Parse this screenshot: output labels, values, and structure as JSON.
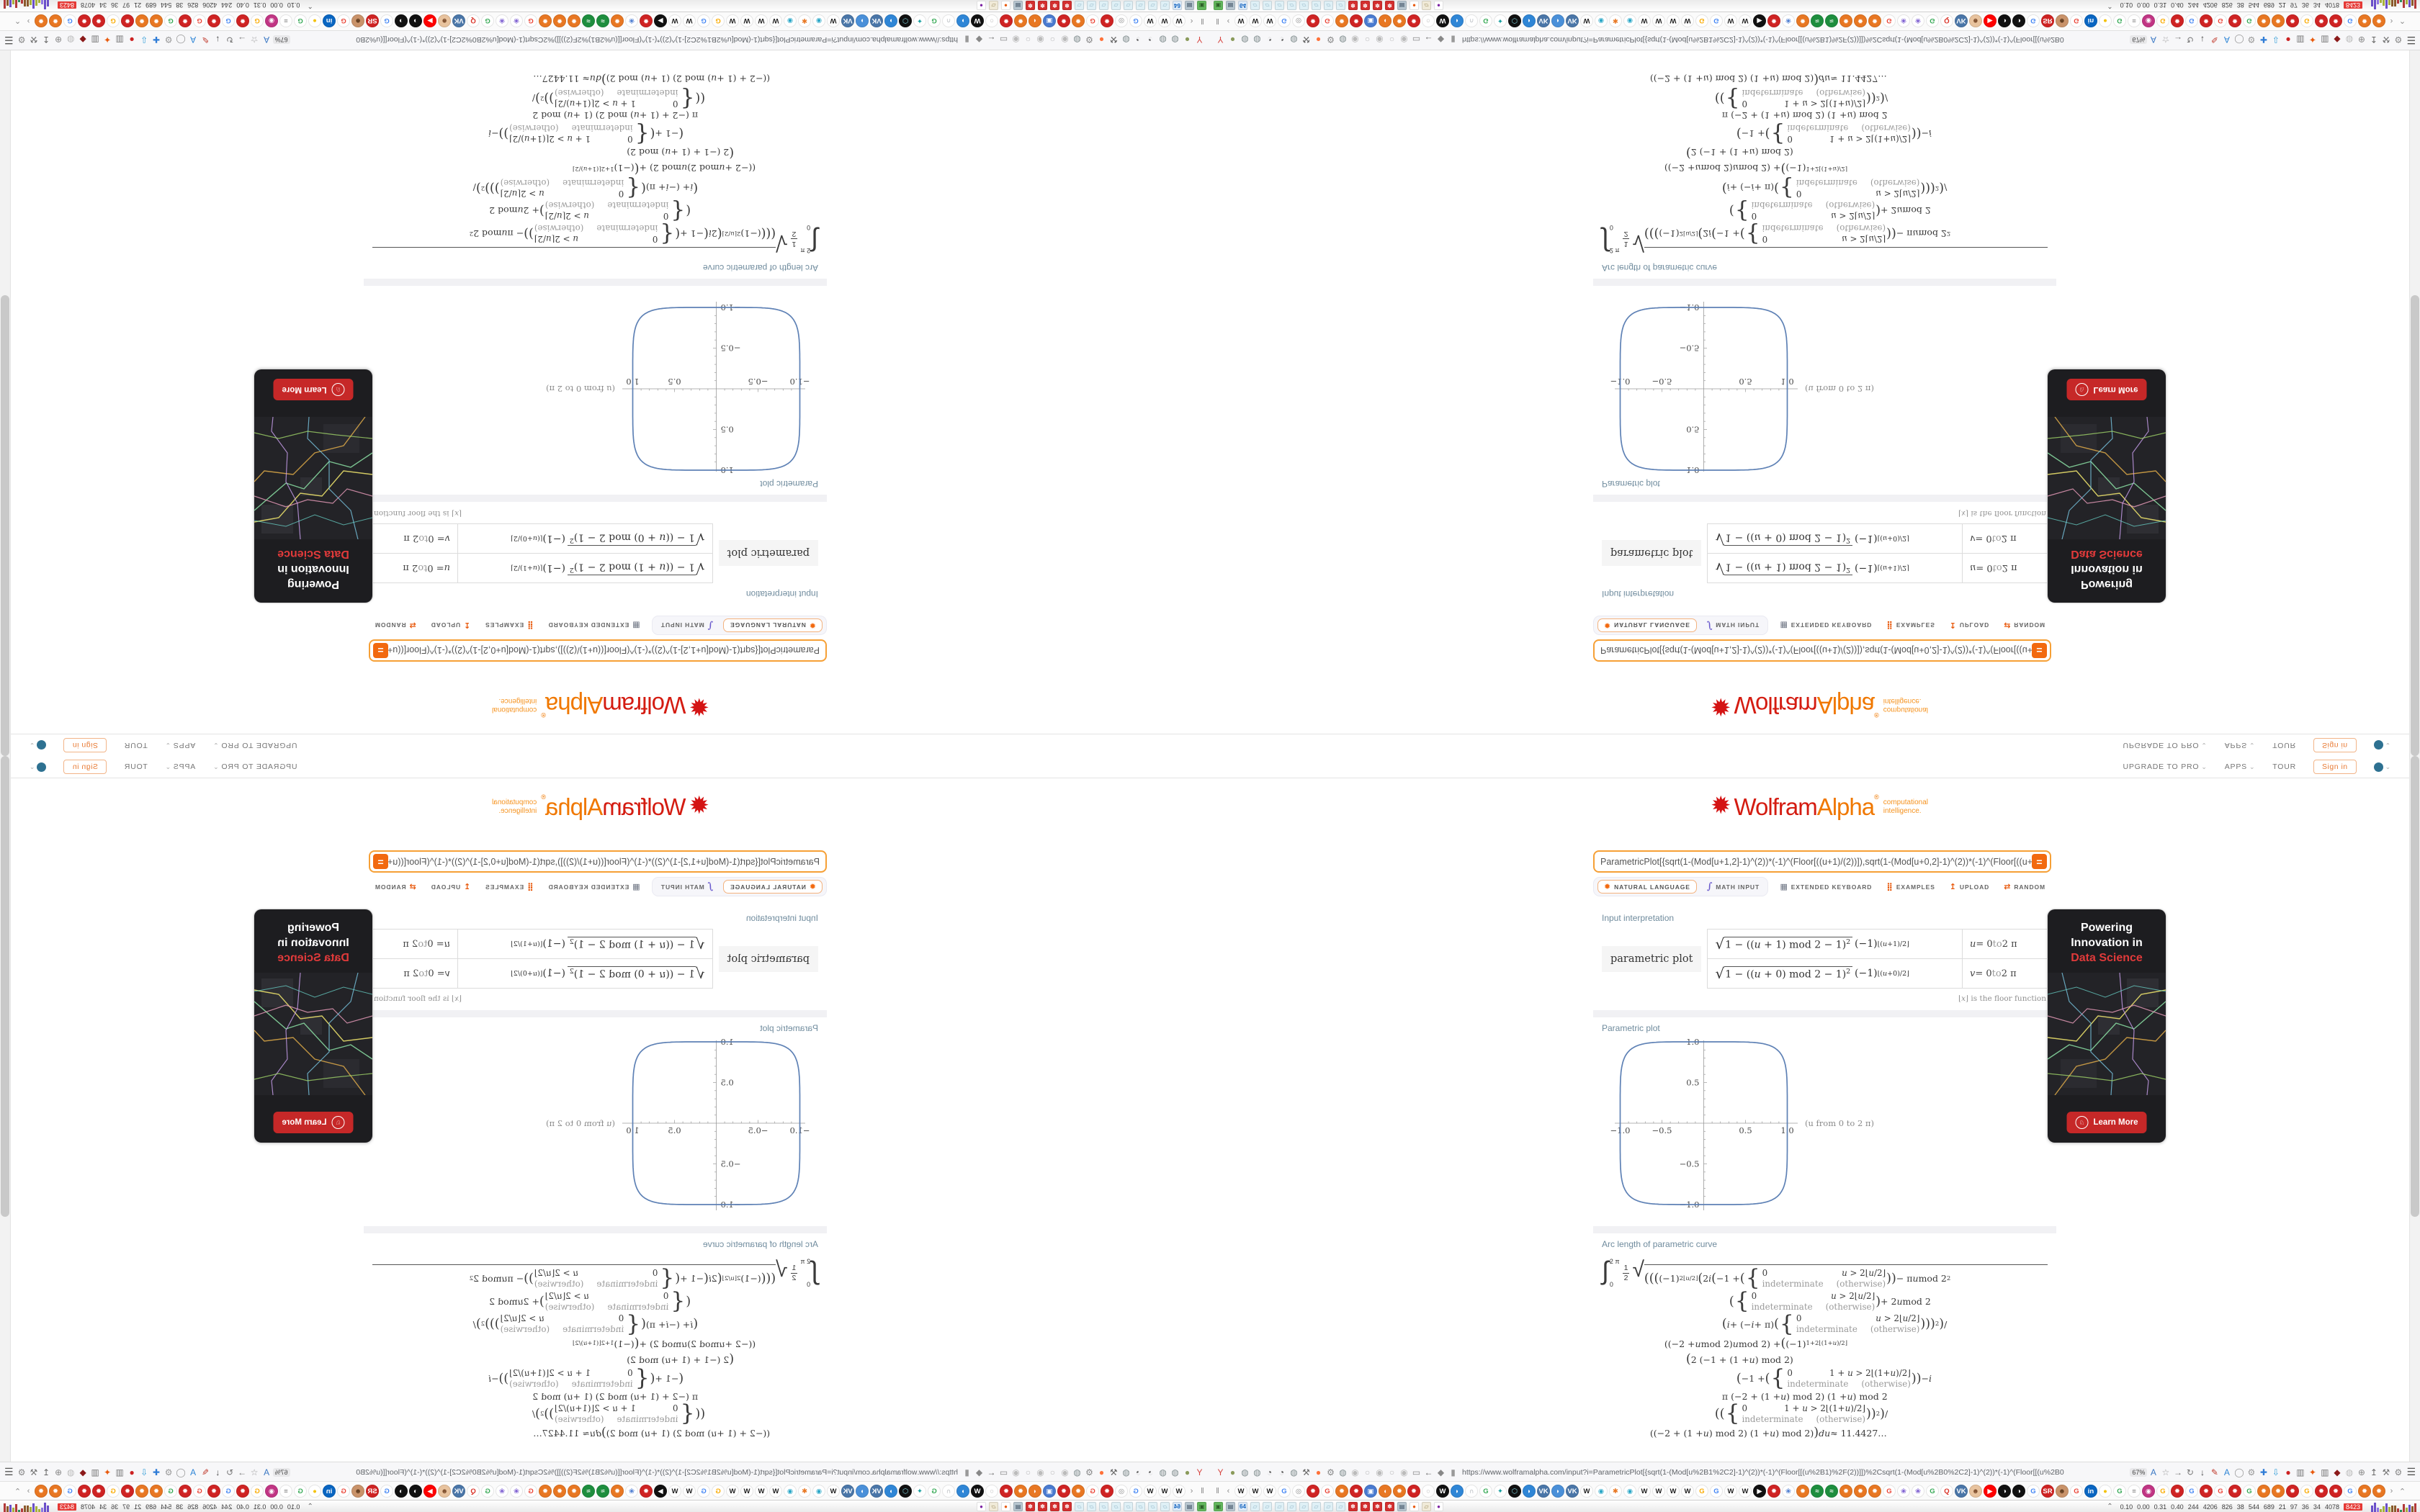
{
  "header": {
    "link_upgrade": "UPGRADE TO PRO",
    "link_apps": "APPS",
    "link_tour": "TOUR",
    "signin_label": "Sign in",
    "chevron": "⌄"
  },
  "logo": {
    "wolfram": "Wolfram",
    "alpha": "Alpha",
    "reg": "®",
    "tagline1": "computational",
    "tagline2": "intelligence.",
    "spikey_glyph": "✹"
  },
  "input": {
    "value": "ParametricPlot[{sqrt(1-(Mod[u+1,2]-1)^(2))*(-1)^(Floor[((u+1)/(2))]),sqrt(1-(Mod[u+0,2]-1)^(2))*(-1)^(Floor[((u+0)/(2))])}]",
    "equals_label": "="
  },
  "buttons": {
    "natural_language": "NATURAL LANGUAGE",
    "math_input": "MATH INPUT",
    "extended_keyboard": "EXTENDED KEYBOARD",
    "examples": "EXAMPLES",
    "upload": "UPLOAD",
    "random": "RANDOM",
    "nl_icon": "✹",
    "mi_icon": "∫",
    "kb_icon": "▦",
    "ex_icon": "⣿",
    "up_icon": "↥",
    "rnd_icon": "⇄"
  },
  "interp": {
    "title": "Input interpretation",
    "label": "parametric plot",
    "row1_formula": "<span class='sq2'>√</span><span class='ov'>1 − ((<i>u</i> + 1) mod 2 − 1)<sup>2</sup></span>&thinsp;(−1)<sup>⌊(<i>u</i>+1)/2⌋</sup>",
    "row1_range": "<i>u</i> = 0 <span class='to'>to</span> 2 π",
    "row2_formula": "<span class='sq2'>√</span><span class='ov'>1 − ((<i>u</i> + 0) mod 2 − 1)<sup>2</sup></span>&thinsp;(−1)<sup>⌊(<i>u</i>+0)/2⌋</sup>",
    "row2_range": "<i>v</i> = 0 <span class='to'>to</span> 2 π",
    "floor_note": "⌊<i>x</i>⌋ is the floor function"
  },
  "plot": {
    "title": "Parametric plot",
    "caption": "(u from 0 to 2 π)",
    "chart_data": {
      "type": "line",
      "parametric": true,
      "x_expr": "sqrt(1-((u+1) mod 2 -1)^2)*(-1)^floor((u+1)/2)",
      "y_expr": "sqrt(1-((u+0) mod 2 -1)^2)*(-1)^floor((u+0)/2)",
      "u_range": [
        0,
        6.2832
      ],
      "shape": "rounded square (superellipse-like closed curve through (±1,0),(0,±1))",
      "xlim": [
        -1.05,
        1.05
      ],
      "ylim": [
        -1.05,
        1.05
      ],
      "grid": false
    },
    "xticks": [
      {
        "v": -1,
        "l": "−1.0"
      },
      {
        "v": -0.5,
        "l": "−0.5"
      },
      {
        "v": 0.5,
        "l": "0.5"
      },
      {
        "v": 1,
        "l": "1.0"
      }
    ],
    "yticks": [
      {
        "v": 1,
        "l": "1.0"
      },
      {
        "v": 0.5,
        "l": "0.5"
      },
      {
        "v": -0.5,
        "l": "−0.5"
      },
      {
        "v": -1,
        "l": "−1.0"
      }
    ],
    "curve_color": "#5e81b5"
  },
  "arc": {
    "title": "Arc length of parametric curve",
    "int_hi": "2 π",
    "int_lo": "0",
    "frac_n": "1",
    "frac_d": "2",
    "radical": "√",
    "integral_glyph": "∫",
    "result": "11.4427…",
    "lines": [
      {
        "i": 0,
        "h": "<span class='bp'>(((</span>(−1)<sup>2⌊<i>u</i>/2⌋</sup><span class='bp'>(</span>2 <i>i</i><span class='bp'>(</span>−1 + <span class='bp'>(</span><span class='cas'><span class='bb'>{</span><span class='cbody'><span class='cr'><span>0</span><span><i>u</i> &gt; 2⌊<i>u</i>/2⌋</span></span><span class='cr ind'><span>indeterminate</span><span>(otherwise)</span></span></span></span><span class='bp'>))</span> − π <i>u</i> mod 2<sup>2</sup>"
      },
      {
        "i": 118,
        "h": "<span class='bp'>(</span><span class='cas'><span class='bb'>{</span><span class='cbody'><span class='cr'><span>0</span><span><i>u</i> &gt; 2⌊<i>u</i>/2⌋</span></span><span class='cr ind'><span>indeterminate</span><span>(otherwise)</span></span></span></span><span class='bp'>)</span> + 2 <i>u</i> mod 2"
      },
      {
        "i": 108,
        "h": "<span class='bp'>(</span><i>i</i> + (−<i>i</i> + π)<span class='bp'>(</span><span class='cas'><span class='bb'>{</span><span class='cbody'><span class='cr'><span>0</span><span><i>u</i> &gt; 2⌊<i>u</i>/2⌋</span></span><span class='cr ind'><span>indeterminate</span><span>(otherwise)</span></span></span></span><span class='bp'>)))</span><sup>2</sup><span class='bp'>)</span>/"
      },
      {
        "i": 28,
        "h": "((−2 + <i>u</i> mod 2) <i>u</i> mod 2) + <span class='bp'>(</span>(−1)<sup>1+2⌊(1+<i>u</i>)/2⌋</sup>"
      },
      {
        "i": 58,
        "h": "<span class='bp'>(</span>2 (−1 + (1 + <i>u</i>) mod 2)"
      },
      {
        "i": 128,
        "h": "<span class='bp'>(</span>−1 + <span class='bp'>(</span><span class='cas'><span class='bb'>{</span><span class='cbody'><span class='cr'><span>0</span><span>1 + <i>u</i> &gt; 2⌊(1+<i>u</i>)/2⌋</span></span><span class='cr ind'><span>indeterminate</span><span>(otherwise)</span></span></span></span><span class='bp'>))</span> − <i>i</i>"
      },
      {
        "i": 108,
        "h": "π (−2 + (1 + <i>u</i>) mod 2) (1 + <i>u</i>) mod 2"
      },
      {
        "i": 98,
        "h": "<span class='bp'>((</span><span class='cas'><span class='bb'>{</span><span class='cbody'><span class='cr'><span>0</span><span>1 + <i>u</i> &gt; 2⌊(1+<i>u</i>)/2⌋</span></span><span class='cr ind'><span>indeterminate</span><span>(otherwise)</span></span></span></span><span class='bp'>))</span><sup>2</sup><span class='bp'>)</span>/"
      },
      {
        "i": 8,
        "h": "((−2 + (1 + <i>u</i>) mod 2) (1 + <i>u</i>) mod 2)<span class='bp'>)</span> <i>du</i> ≈ 11.4427…"
      }
    ]
  },
  "ad": {
    "line1": "Powering",
    "line2": "Innovation in",
    "line3": "Data Science",
    "button": "Learn More",
    "accent": "#e03a3a",
    "button_bg": "#c62828",
    "knight_icon": "♘"
  },
  "browser": {
    "url": "https://www.wolframalpha.com/input?i=ParametricPlot[{sqrt(1-(Mod[u%2B1%2C2]-1)^(2))*(-1)^(Floor[[(u%2B1)%2F(2))]])%2Csqrt(1-(Mod[u%2B0%2C2]-1)^(2))*(-1)^(Floor[[(u%2B0",
    "zoom_badge": "67%",
    "menu_icon": "☰",
    "tab_ctl_left1": "‖",
    "tab_ctl_left2": "‹",
    "tab_ctl_right1": "›",
    "tab_ctl_right2": "⌃",
    "nav_left_icons": [
      {
        "t": "Y",
        "c": "#d64541"
      },
      {
        "t": "●",
        "c": "#8a9a5b"
      },
      {
        "t": "◍",
        "c": "#7f8c8d"
      },
      {
        "t": "◍",
        "c": "#7f8c8d"
      },
      {
        "t": "◔",
        "c": "#555555"
      },
      {
        "t": "◔",
        "c": "#555555"
      },
      {
        "t": "◍",
        "c": "#7f8c8d"
      },
      {
        "t": "⚒",
        "c": "#666666"
      },
      {
        "t": "●",
        "c": "#ff7139"
      },
      {
        "t": "⚙",
        "c": "#888888"
      },
      {
        "t": "◍",
        "c": "#7f8c8d"
      },
      {
        "t": "◉",
        "c": "#bbbbbb"
      },
      {
        "t": "○",
        "c": "#bbbbbb"
      },
      {
        "t": "◉",
        "c": "#bbbbbb"
      },
      {
        "t": "○",
        "c": "#bbbbbb"
      },
      {
        "t": "◉",
        "c": "#bbbbbb"
      },
      {
        "t": "▭",
        "c": "#8a8a8a"
      },
      {
        "t": "←",
        "c": "#666666"
      },
      {
        "t": "◆",
        "c": "#888888"
      },
      {
        "t": "▮",
        "c": "#999999"
      }
    ],
    "nav_right_icons": [
      {
        "t": "A",
        "c": "#3b78c4"
      },
      {
        "t": "☆",
        "c": "#999999"
      },
      {
        "t": "→",
        "c": "#777777"
      },
      {
        "t": "↻",
        "c": "#777777"
      },
      {
        "t": "↓",
        "c": "#444444"
      },
      {
        "t": "✎",
        "c": "#c0392b"
      },
      {
        "t": "A",
        "c": "#2f86d6"
      },
      {
        "t": "◯",
        "c": "#999999"
      },
      {
        "t": "⚙",
        "c": "#999999"
      },
      {
        "t": "✚",
        "c": "#2f7cd6"
      },
      {
        "t": "⇩",
        "c": "#3aa0d8"
      },
      {
        "t": "●",
        "c": "#cc2222"
      },
      {
        "t": "▥",
        "c": "#777777"
      },
      {
        "t": "✦",
        "c": "#e8590c"
      },
      {
        "t": "▥",
        "c": "#777777"
      },
      {
        "t": "◆",
        "c": "#8b1a1a"
      },
      {
        "t": "◍",
        "c": "#bbbbbb"
      },
      {
        "t": "⊕",
        "c": "#888888"
      },
      {
        "t": "↥",
        "c": "#666666"
      },
      {
        "t": "⚒",
        "c": "#777777"
      },
      {
        "t": "⚙",
        "c": "#888888"
      }
    ],
    "tab_favicons": [
      [
        "W",
        "#ffffff",
        "#222222"
      ],
      [
        "W",
        "#ffffff",
        "#222222"
      ],
      [
        "W",
        "#ffffff",
        "#222222"
      ],
      [
        "G",
        "#ffffff",
        "#4285f4"
      ],
      [
        "◎",
        "#ffffff",
        "#888888"
      ],
      [
        "✹",
        "#cf2323",
        "#ffffff"
      ],
      [
        "G",
        "#ffffff",
        "#ea4335"
      ],
      [
        "✹",
        "#e87722",
        "#ffffff"
      ],
      [
        "✹",
        "#cf2323",
        "#ffffff"
      ],
      [
        "▣",
        "#4a7bd0",
        "#ffffff"
      ],
      [
        "◖",
        "#e87722",
        "#ffffff"
      ],
      [
        "✹",
        "#e87722",
        "#ffffff"
      ],
      [
        "✹",
        "#cf2323",
        "#ffffff"
      ],
      [
        "○",
        "#ffffff",
        "#bbbbbb"
      ],
      [
        "W",
        "#111111",
        "#ffffff"
      ],
      [
        "◗",
        "#2f86d6",
        "#ffffff"
      ],
      [
        "∩",
        "#ffffff",
        "#9aa0a6"
      ],
      [
        "G",
        "#ffffff",
        "#34a853"
      ],
      [
        "✦",
        "#ffffff",
        "#159e9e"
      ],
      [
        "⬡",
        "#111111",
        "#7fd4e0"
      ],
      [
        "◗",
        "#2f86d6",
        "#ffffff"
      ],
      [
        "VK",
        "#4a76a8",
        "#ffffff"
      ],
      [
        "◗",
        "#4a90d9",
        "#ffffff"
      ],
      [
        "VK",
        "#4a76a8",
        "#ffffff"
      ],
      [
        "W",
        "#ffffff",
        "#222222"
      ],
      [
        "◉",
        "#ffffff",
        "#2aa7c7"
      ],
      [
        "✱",
        "#ffffff",
        "#e87722"
      ],
      [
        "◉",
        "#ffffff",
        "#2aa7c7"
      ],
      [
        "W",
        "#ffffff",
        "#222222"
      ],
      [
        "W",
        "#ffffff",
        "#222222"
      ],
      [
        "W",
        "#ffffff",
        "#222222"
      ],
      [
        "W",
        "#ffffff",
        "#222222"
      ],
      [
        "G",
        "#ffffff",
        "#f9ab00"
      ],
      [
        "G",
        "#ffffff",
        "#4285f4"
      ],
      [
        "W",
        "#ffffff",
        "#222222"
      ],
      [
        "W",
        "#ffffff",
        "#222222"
      ],
      [
        "▶",
        "#111111",
        "#ffffff"
      ],
      [
        "✹",
        "#cf2323",
        "#ffffff"
      ],
      [
        "❀",
        "#ffffff",
        "#4a7bd0"
      ],
      [
        "✹",
        "#e87722",
        "#ffffff"
      ],
      [
        "≈",
        "#1e8e3e",
        "#ffffff"
      ],
      [
        "≈",
        "#1e8e3e",
        "#ffffff"
      ],
      [
        "✹",
        "#e87722",
        "#ffffff"
      ],
      [
        "✹",
        "#e87722",
        "#ffffff"
      ],
      [
        "✹",
        "#e87722",
        "#ffffff"
      ],
      [
        "G",
        "#ffffff",
        "#ea4335"
      ],
      [
        "❀",
        "#ffffff",
        "#7a5bd0"
      ],
      [
        "❀",
        "#ffffff",
        "#7a5bd0"
      ],
      [
        "G",
        "#ffffff",
        "#34a853"
      ],
      [
        "Q",
        "#ffffff",
        "#d93025"
      ],
      [
        "VK",
        "#4a76a8",
        "#ffffff"
      ],
      [
        "☻",
        "#e8c39e",
        "#7a4b2a"
      ],
      [
        "▶",
        "#ff0000",
        "#ffffff"
      ],
      [
        "◑",
        "#111111",
        "#ffffff"
      ],
      [
        "◑",
        "#111111",
        "#ffffff"
      ],
      [
        "G",
        "#ffffff",
        "#4285f4"
      ],
      [
        "SR",
        "#cf2323",
        "#ffffff"
      ],
      [
        "☻",
        "#c9936a",
        "#5d3a1d"
      ],
      [
        "G",
        "#ffffff",
        "#ea4335"
      ],
      [
        "in",
        "#0a66c2",
        "#ffffff"
      ],
      [
        "●",
        "#ffffff",
        "#f4c20d"
      ],
      [
        "G",
        "#ffffff",
        "#34a853"
      ],
      [
        "≡",
        "#ffffff",
        "#888888"
      ],
      [
        "◉",
        "#c13584",
        "#ffffff"
      ],
      [
        "G",
        "#ffffff",
        "#f9ab00"
      ],
      [
        "✹",
        "#cf2323",
        "#ffffff"
      ],
      [
        "G",
        "#ffffff",
        "#4285f4"
      ],
      [
        "✹",
        "#cf2323",
        "#ffffff"
      ],
      [
        "G",
        "#ffffff",
        "#ea4335"
      ],
      [
        "✹",
        "#cf2323",
        "#ffffff"
      ],
      [
        "G",
        "#ffffff",
        "#34a853"
      ],
      [
        "✹",
        "#e87722",
        "#ffffff"
      ],
      [
        "✹",
        "#e87722",
        "#ffffff"
      ],
      [
        "✹",
        "#cf2323",
        "#ffffff"
      ],
      [
        "G",
        "#ffffff",
        "#f9ab00"
      ],
      [
        "✹",
        "#cf2323",
        "#ffffff"
      ],
      [
        "✹",
        "#cf2323",
        "#ffffff"
      ],
      [
        "G",
        "#ffffff",
        "#4285f4"
      ],
      [
        "✹",
        "#e87722",
        "#ffffff"
      ],
      [
        "✹",
        "#e87722",
        "#ffffff"
      ]
    ]
  },
  "taskbar": {
    "expand_icon": "⌃",
    "apps": [
      {
        "t": "▣",
        "b": "#63b75d",
        "f": "#2c5e27"
      },
      {
        "t": "▤",
        "b": "#b8c6d0",
        "f": "#33475a"
      },
      {
        "t": "64",
        "b": "#dbe9f7",
        "f": "#1565c0"
      },
      {
        "t": "▱",
        "b": "#dff0f6",
        "f": "#8fb3c4"
      },
      {
        "t": "▱",
        "b": "#dff0f6",
        "f": "#8fb3c4"
      },
      {
        "t": "▱",
        "b": "#dff0f6",
        "f": "#8fb3c4"
      },
      {
        "t": "▱",
        "b": "#dff0f6",
        "f": "#8fb3c4"
      },
      {
        "t": "▱",
        "b": "#dff0f6",
        "f": "#8fb3c4"
      },
      {
        "t": "▱",
        "b": "#dff0f6",
        "f": "#8fb3c4"
      },
      {
        "t": "▱",
        "b": "#dff0f6",
        "f": "#8fb3c4"
      },
      {
        "t": "▱",
        "b": "#dff0f6",
        "f": "#8fb3c4"
      },
      {
        "t": "✽",
        "b": "#d32f2f",
        "f": "#ffffff"
      },
      {
        "t": "✽",
        "b": "#d32f2f",
        "f": "#ffffff"
      },
      {
        "t": "✽",
        "b": "#d32f2f",
        "f": "#ffffff"
      },
      {
        "t": "✽",
        "b": "#d32f2f",
        "f": "#ffffff"
      },
      {
        "t": "▤",
        "b": "#b8c6d0",
        "f": "#33475a"
      },
      {
        "t": "●",
        "b": "#ffffff",
        "f": "#e8590c"
      },
      {
        "t": "▱",
        "b": "#f0ead8",
        "f": "#9c8a5a"
      },
      {
        "t": "●",
        "b": "#ffffff",
        "f": "#7b1fa2"
      }
    ],
    "stats": [
      {
        "t": "0.10"
      },
      {
        "t": "0.00"
      },
      {
        "t": "0.31"
      },
      {
        "t": "0.40"
      },
      {
        "t": "244"
      },
      {
        "t": "4206"
      },
      {
        "t": "826"
      },
      {
        "t": "38"
      },
      {
        "t": "544"
      },
      {
        "t": "689"
      },
      {
        "t": "21"
      },
      {
        "t": "97"
      },
      {
        "t": "36"
      },
      {
        "t": "34"
      },
      {
        "t": "4078"
      },
      {
        "t": "8423",
        "hl": true
      }
    ],
    "graph_bars": [
      {
        "c": "#6a4fc9",
        "h": 9
      },
      {
        "c": "#6a4fc9",
        "h": 13
      },
      {
        "c": "#8f76e0",
        "h": 6
      },
      {
        "c": "#a6b13a",
        "h": 4
      },
      {
        "c": "#a6b13a",
        "h": 8
      },
      {
        "c": "#6a4fc9",
        "h": 12
      },
      {
        "c": "#a6b13a",
        "h": 7
      },
      {
        "c": "#8a5a2b",
        "h": 9
      },
      {
        "c": "#8a5a2b",
        "h": 9
      },
      {
        "c": "#b33939",
        "h": 5
      },
      {
        "c": "#2e8b57",
        "h": 3
      },
      {
        "c": "#b33939",
        "h": 11
      },
      {
        "c": "#a6b13a",
        "h": 6
      },
      {
        "c": "#6a4fc9",
        "h": 10
      },
      {
        "c": "#8a5a2b",
        "h": 8
      },
      {
        "c": "#b33939",
        "h": 12
      }
    ]
  }
}
